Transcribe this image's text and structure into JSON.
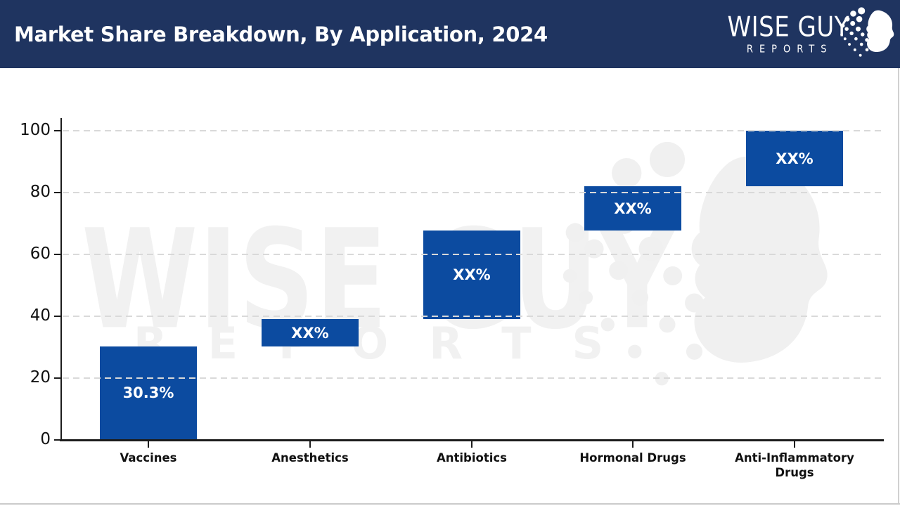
{
  "header": {
    "title": "Market Share Breakdown, By Application, 2024",
    "logo": {
      "name": "WISE GUY",
      "subname": "REPORTS"
    }
  },
  "watermark": {
    "line1": "WISE GUY",
    "line2": "REPORTS"
  },
  "chart_data": {
    "type": "bar",
    "subtype": "waterfall",
    "title": "Market Share Breakdown, By Application, 2024",
    "categories": [
      "Vaccines",
      "Anesthetics",
      "Antibiotics",
      "Hormonal Drugs",
      "Anti-Inflammatory Drugs"
    ],
    "segments": [
      {
        "category": "Vaccines",
        "start": 0,
        "end": 30.3,
        "label": "30.3%"
      },
      {
        "category": "Anesthetics",
        "start": 30.3,
        "end": 39,
        "label": "XX%"
      },
      {
        "category": "Antibiotics",
        "start": 39,
        "end": 67.7,
        "label": "XX%"
      },
      {
        "category": "Hormonal Drugs",
        "start": 67.7,
        "end": 82,
        "label": "XX%"
      },
      {
        "category": "Anti-Inflammatory Drugs",
        "start": 82,
        "end": 100,
        "label": "XX%"
      }
    ],
    "yticks": [
      0,
      20,
      40,
      60,
      80,
      100
    ],
    "ylim": [
      0,
      100
    ],
    "grid": "horizontal-dashed",
    "legend": "none",
    "colors": {
      "bar": "#0c4ba0",
      "bar_label": "#ffffff",
      "grid": "#d9d9d9",
      "axis": "#1c1c1c",
      "tick_label": "#111111",
      "header_bg": "#1f3460",
      "watermark": "#f1f1f1"
    }
  }
}
